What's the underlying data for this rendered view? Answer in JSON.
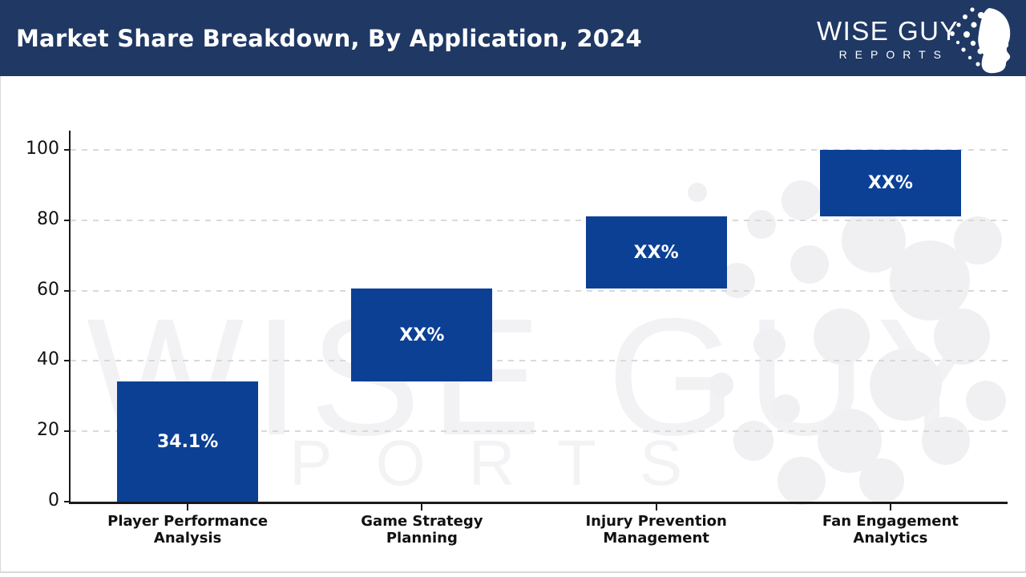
{
  "header": {
    "title": "Market Share Breakdown, By Application, 2024",
    "logo": {
      "line1": "WISE GUY",
      "line2": "REPORTS"
    }
  },
  "watermark": {
    "line1": "WISE GUY",
    "line2": "REPORTS"
  },
  "colors": {
    "header_bg": "#1f3864",
    "bar": "#0b4095",
    "bar_label": "#ffffff",
    "grid": "#d9d9d9",
    "axis": "#1a1a1a",
    "tick_text": "#111111",
    "watermark": "#f2f2f5"
  },
  "chart_data": {
    "type": "bar",
    "subtype": "waterfall",
    "title": "Market Share Breakdown, By Application, 2024",
    "categories": [
      "Player Performance\nAnalysis",
      "Game Strategy\nPlanning",
      "Injury Prevention\nManagement",
      "Fan Engagement\nAnalytics"
    ],
    "segments": [
      {
        "start": 0,
        "end": 34.1,
        "label": "34.1%"
      },
      {
        "start": 34.1,
        "end": 60.6,
        "label": "XX%"
      },
      {
        "start": 60.6,
        "end": 81.0,
        "label": "XX%"
      },
      {
        "start": 81.0,
        "end": 100,
        "label": "XX%"
      }
    ],
    "xlabel": "",
    "ylabel": "",
    "ylim": [
      0,
      100
    ],
    "yticks": [
      0,
      20,
      40,
      60,
      80,
      100
    ],
    "grid": "horizontal-dashed",
    "legend": "none"
  }
}
